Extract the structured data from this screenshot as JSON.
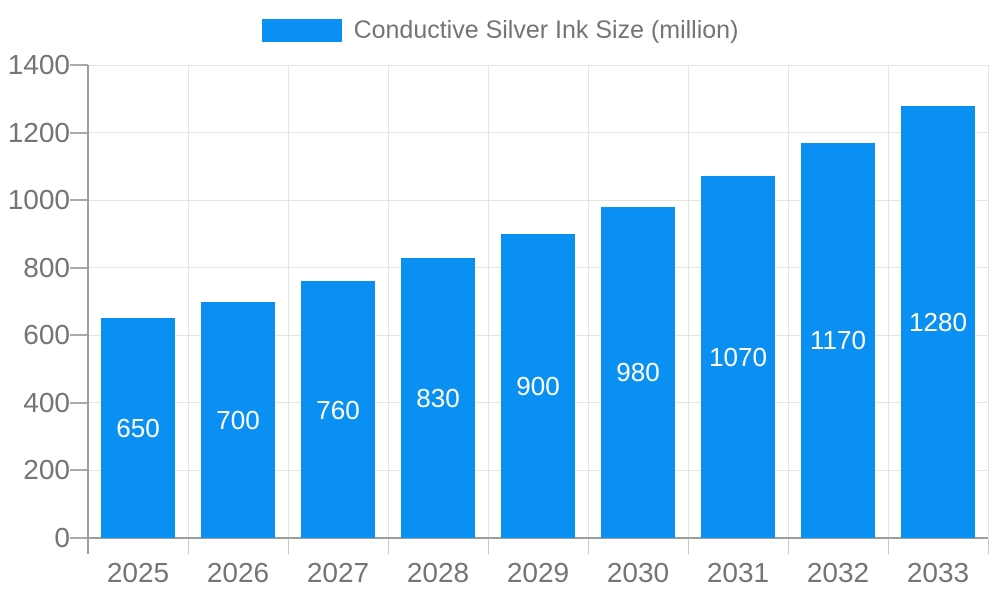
{
  "chart_data": {
    "type": "bar",
    "title": "Conductive Silver Ink Size (million)",
    "legend_label": "Conductive Silver Ink Size (million)",
    "legend_position": "top",
    "categories": [
      "2025",
      "2026",
      "2027",
      "2028",
      "2029",
      "2030",
      "2031",
      "2032",
      "2033"
    ],
    "values": [
      650,
      700,
      760,
      830,
      900,
      980,
      1070,
      1170,
      1280
    ],
    "value_labels": [
      "650",
      "700",
      "760",
      "830",
      "900",
      "980",
      "1070",
      "1170",
      "1280"
    ],
    "xlabel": "",
    "ylabel": "",
    "ylim": [
      0,
      1400
    ],
    "yticks": [
      0,
      200,
      400,
      600,
      800,
      1000,
      1200,
      1400
    ],
    "grid": true,
    "colors": {
      "bar": "#0990f2",
      "value_label": "#ffffff",
      "axis_line": "#9e9e9e",
      "gridline": "#e4e4e4",
      "y_tick_mark": "#aaaaaa",
      "x_tick_mark": "#c9c9c9",
      "axis_text": "#757575",
      "background": "#ffffff"
    }
  }
}
